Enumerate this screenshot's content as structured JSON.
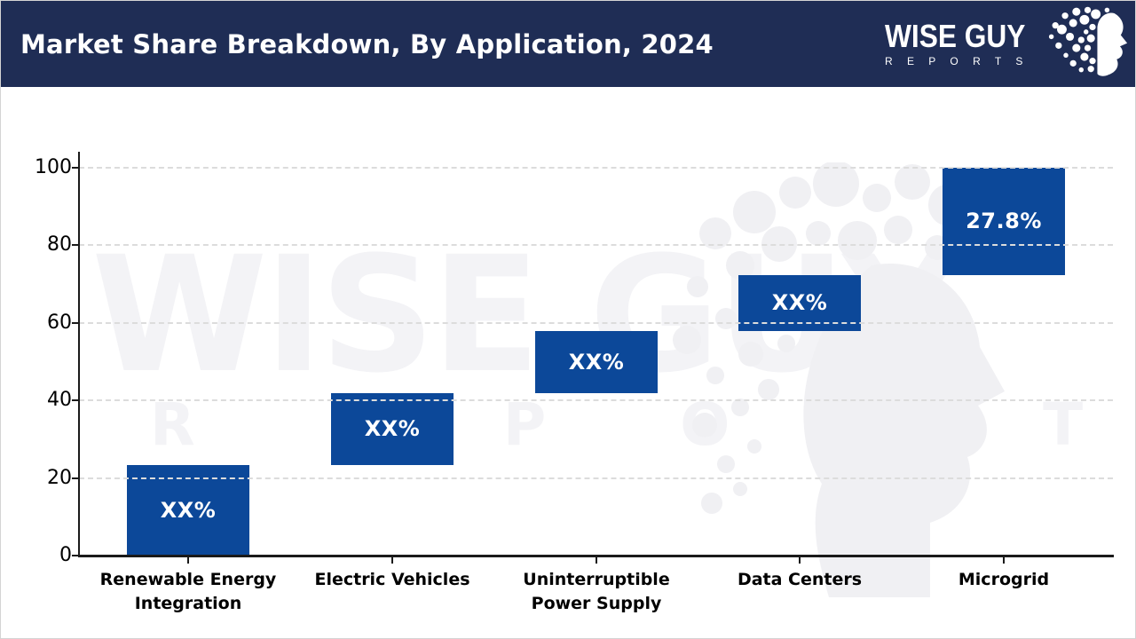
{
  "header": {
    "title": "Market Share Breakdown, By Application, 2024",
    "logo_line1": "WISE GUY",
    "logo_line2": "R E P O R T S"
  },
  "watermark": {
    "line1": "WISE GUY",
    "line2": "R E P O R T S"
  },
  "colors": {
    "header_bg": "#1f2d55",
    "bar": "#0c4899",
    "bar_label": "#ffffff",
    "grid": "#dcdcdc",
    "axis": "#1a1a1a",
    "watermark": "#f3f3f6"
  },
  "chart_data": {
    "type": "bar",
    "subtype": "floating-waterfall",
    "title": "Market Share Breakdown, By Application, 2024",
    "xlabel": "",
    "ylabel": "",
    "ylim": [
      0,
      100
    ],
    "yticks": [
      0,
      20,
      40,
      60,
      80,
      100
    ],
    "grid": "horizontal-dashed",
    "legend": "none",
    "categories": [
      "Renewable Energy Integration",
      "Electric Vehicles",
      "Uninterruptible Power Supply",
      "Data Centers",
      "Microgrid"
    ],
    "bars": [
      {
        "category": "Renewable Energy Integration",
        "label": "XX%",
        "start": 0,
        "end": 23.4,
        "display_lines": [
          "Renewable Energy",
          "Integration"
        ]
      },
      {
        "category": "Electric Vehicles",
        "label": "XX%",
        "start": 23.4,
        "end": 41.8,
        "display_lines": [
          "Electric Vehicles"
        ]
      },
      {
        "category": "Uninterruptible Power Supply",
        "label": "XX%",
        "start": 41.8,
        "end": 57.9,
        "display_lines": [
          "Uninterruptible",
          "Power Supply"
        ]
      },
      {
        "category": "Data Centers",
        "label": "XX%",
        "start": 57.9,
        "end": 72.2,
        "display_lines": [
          "Data Centers"
        ]
      },
      {
        "category": "Microgrid",
        "label": "27.8%",
        "start": 72.2,
        "end": 100,
        "display_lines": [
          "Microgrid"
        ]
      }
    ]
  }
}
